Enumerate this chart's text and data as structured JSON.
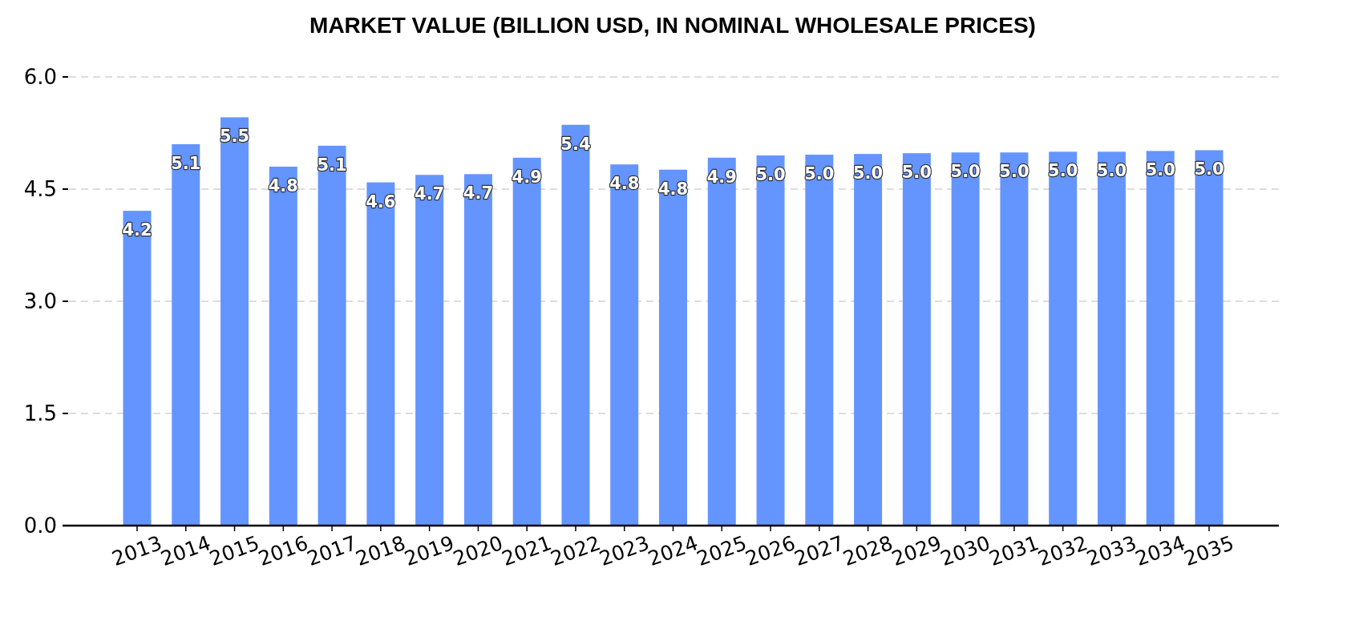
{
  "chart_data": {
    "type": "bar",
    "title": "MARKET VALUE (BILLION USD, IN NOMINAL WHOLESALE PRICES)",
    "categories": [
      "2013",
      "2014",
      "2015",
      "2016",
      "2017",
      "2018",
      "2019",
      "2020",
      "2021",
      "2022",
      "2023",
      "2024",
      "2025",
      "2026",
      "2027",
      "2028",
      "2029",
      "2030",
      "2031",
      "2032",
      "2033",
      "2034",
      "2035"
    ],
    "values": [
      4.21,
      5.1,
      5.46,
      4.8,
      5.08,
      4.59,
      4.69,
      4.7,
      4.92,
      5.36,
      4.83,
      4.76,
      4.92,
      4.95,
      4.96,
      4.97,
      4.98,
      4.99,
      4.99,
      5.0,
      5.0,
      5.01,
      5.02
    ],
    "value_labels": [
      "4.2",
      "5.1",
      "5.5",
      "4.8",
      "5.1",
      "4.6",
      "4.7",
      "4.7",
      "4.9",
      "5.4",
      "4.8",
      "4.8",
      "4.9",
      "5.0",
      "5.0",
      "5.0",
      "5.0",
      "5.0",
      "5.0",
      "5.0",
      "5.0",
      "5.0",
      "5.0"
    ],
    "color": "#6495ff",
    "ylim": [
      0,
      6.0
    ],
    "yticks": [
      {
        "value": 0,
        "label": "0.0"
      },
      {
        "value": 1.5,
        "label": "1.5"
      },
      {
        "value": 3,
        "label": "3.0"
      },
      {
        "value": 4.5,
        "label": "4.5"
      },
      {
        "value": 6,
        "label": "6.0"
      }
    ],
    "grid": "y"
  }
}
